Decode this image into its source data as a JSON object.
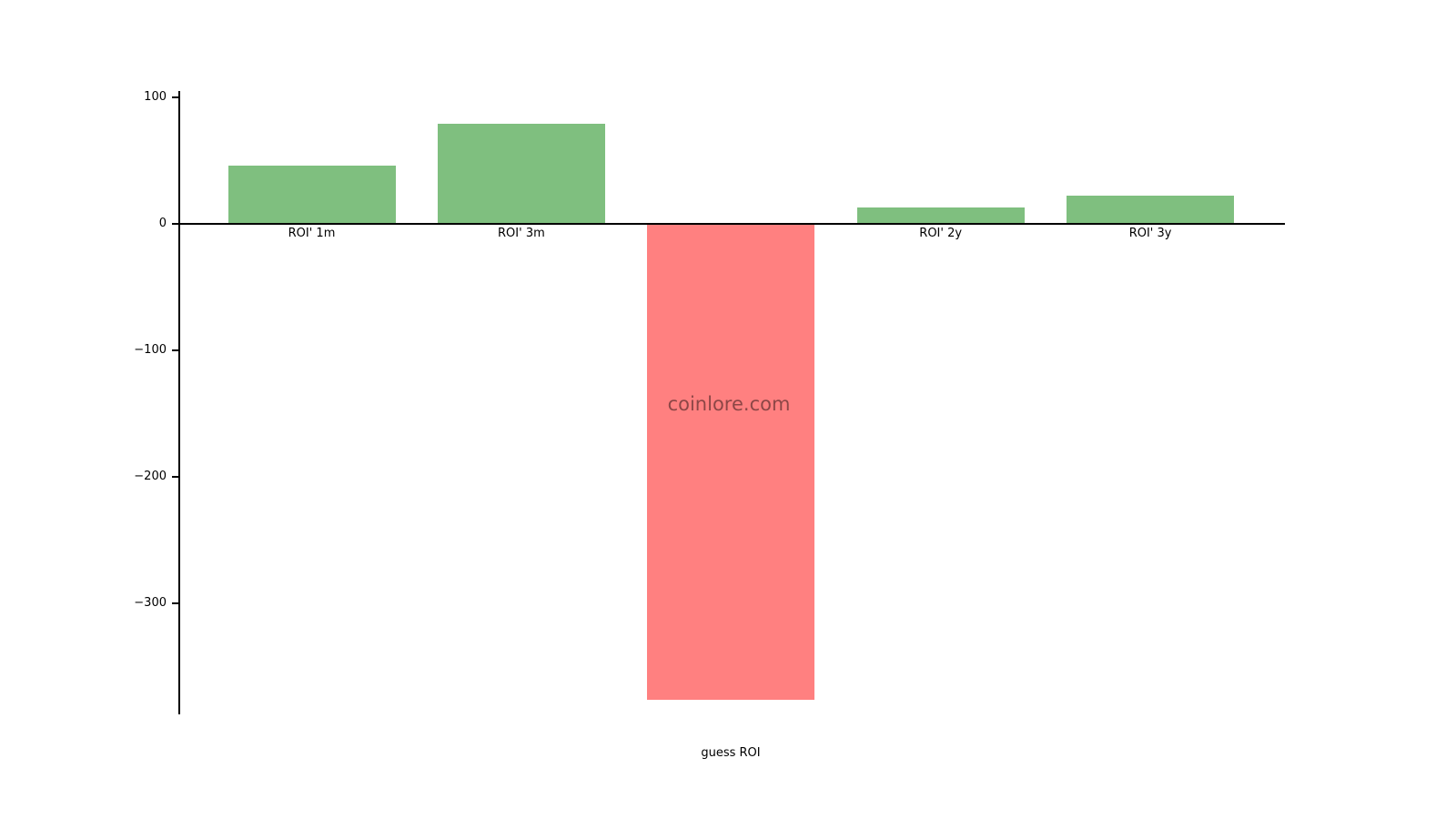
{
  "chart_data": {
    "type": "bar",
    "title": "",
    "xlabel": "guess ROI",
    "ylabel": "",
    "categories": [
      "ROI' 1m",
      "ROI' 3m",
      "",
      "ROI' 2y",
      "ROI' 3y"
    ],
    "values": [
      46,
      79,
      -376,
      13,
      22
    ],
    "ylim": [
      -388,
      105
    ],
    "yticks": [
      100,
      0,
      -100,
      -200,
      -300
    ],
    "ytick_labels": [
      "100",
      "0",
      "−100",
      "−200",
      "−300"
    ],
    "grid": false,
    "legend_position": "none",
    "bar_color_positive": "#7fbf7f",
    "bar_color_negative": "#ff8080",
    "axis_color": "#000000",
    "watermark": "coinlore.com"
  }
}
